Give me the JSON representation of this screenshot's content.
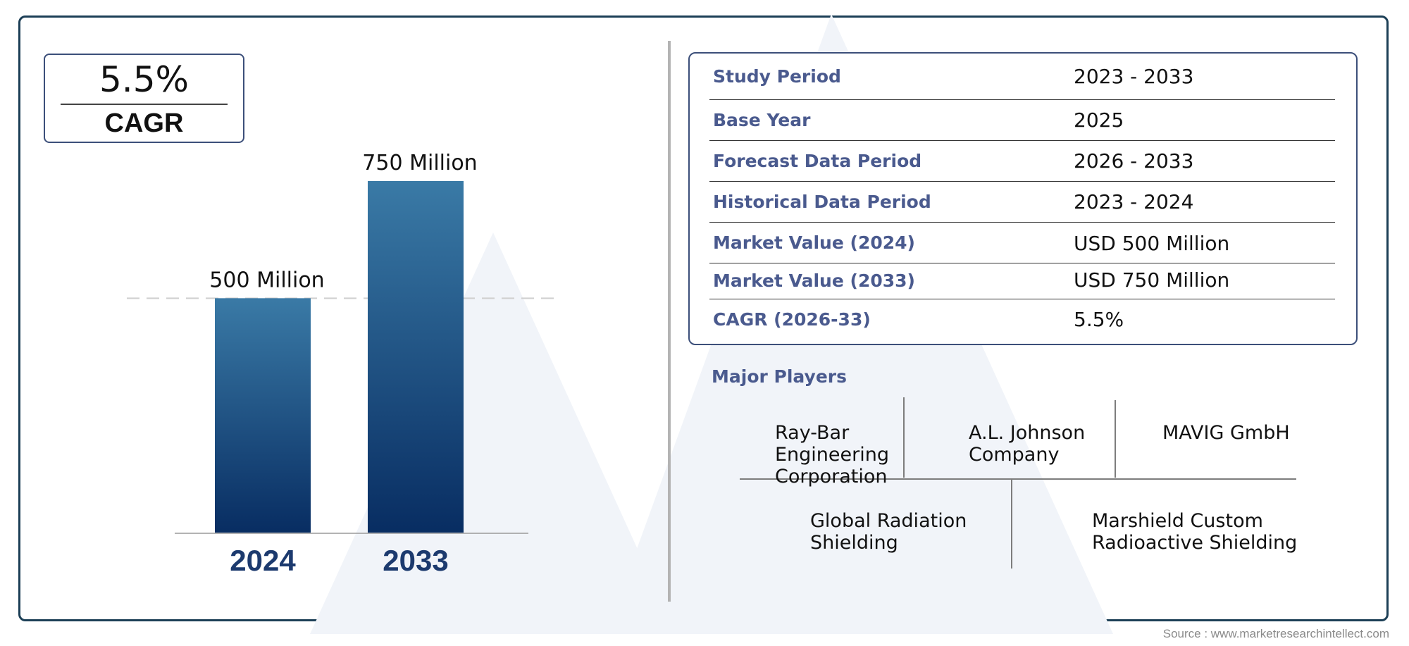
{
  "cagr": {
    "value": "5.5%",
    "label": "CAGR"
  },
  "chart_data": {
    "type": "bar",
    "categories": [
      "2024",
      "2033"
    ],
    "values": [
      500,
      750
    ],
    "data_labels": [
      "500 Million",
      "750 Million"
    ],
    "reference_line": 500,
    "ylim": [
      0,
      750
    ],
    "grid": false,
    "colors": {
      "bar_top": "#3a7aa6",
      "bar_bottom": "#082d62",
      "category_label": "#1c3a6e"
    }
  },
  "info_table": {
    "rows": [
      {
        "label": "Study Period",
        "value": "2023 - 2033"
      },
      {
        "label": "Base Year",
        "value": "2025"
      },
      {
        "label": "Forecast Data Period",
        "value": "2026 - 2033"
      },
      {
        "label": "Historical Data Period",
        "value": "2023 - 2024"
      },
      {
        "label": "Market Value (2024)",
        "value": "USD 500 Million"
      },
      {
        "label": "Market Value (2033)",
        "value": "USD 750 Million"
      },
      {
        "label": "CAGR (2026-33)",
        "value": "5.5%"
      }
    ]
  },
  "major_players": {
    "title": "Major Players",
    "players": [
      "Ray-Bar Engineering Corporation",
      "A.L. Johnson Company",
      "MAVIG GmbH",
      "Global Radiation Shielding",
      "Marshield Custom Radioactive Shielding"
    ]
  },
  "source": "Source : www.marketresearchintellect.com",
  "colors": {
    "frame": "#1c3f56",
    "accent_text": "#4a5a8e"
  }
}
